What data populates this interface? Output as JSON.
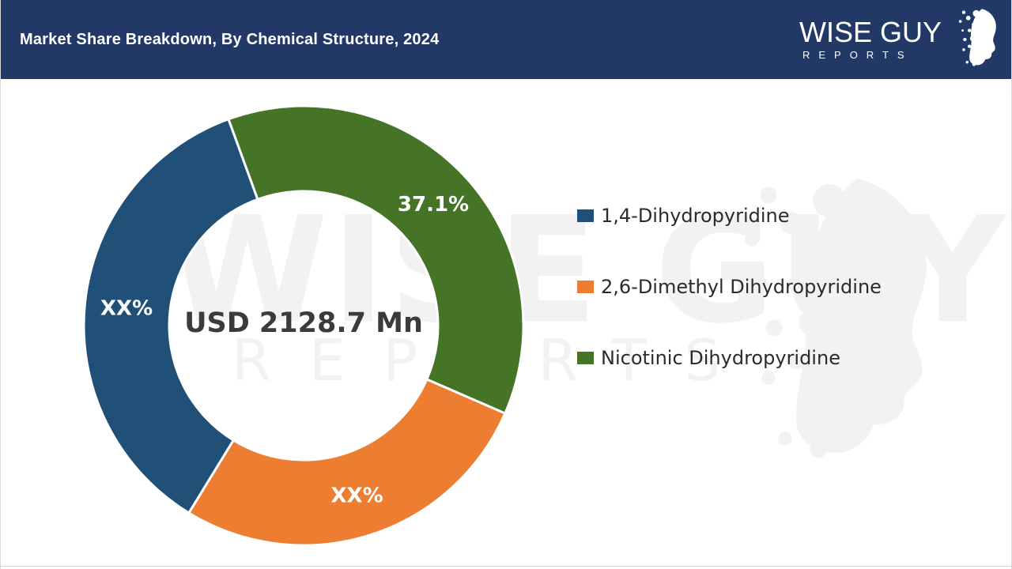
{
  "header": {
    "title": "Market Share Breakdown, By Chemical Structure, 2024",
    "logo": {
      "title": "WISE GUY",
      "subtitle": "REPORTS"
    },
    "bg_color": "#223968"
  },
  "watermark": {
    "line1": "WISE GUY",
    "line2": "REPORTS"
  },
  "chart_data": {
    "type": "pie",
    "subtype": "donut",
    "title": "Market Share Breakdown, By Chemical Structure, 2024",
    "center_label": "USD 2128.7 Mn",
    "start_angle_deg": -20,
    "direction": "clockwise",
    "legend_position": "right",
    "segments": [
      {
        "name": "Nicotinic Dihydropyridine",
        "value_pct": 37.1,
        "label": "37.1%",
        "color": "#457427"
      },
      {
        "name": "2,6-Dimethyl Dihydropyridine",
        "value_pct": 27.2,
        "label": "XX%",
        "color": "#ED7D31"
      },
      {
        "name": "1,4-Dihydropyridine",
        "value_pct": 35.7,
        "label": "XX%",
        "color": "#205077"
      }
    ]
  },
  "legend": {
    "items": [
      {
        "label": "1,4-Dihydropyridine",
        "color": "#205077"
      },
      {
        "label": "2,6-Dimethyl Dihydropyridine",
        "color": "#ED7D31"
      },
      {
        "label": "Nicotinic Dihydropyridine",
        "color": "#457427"
      }
    ]
  }
}
